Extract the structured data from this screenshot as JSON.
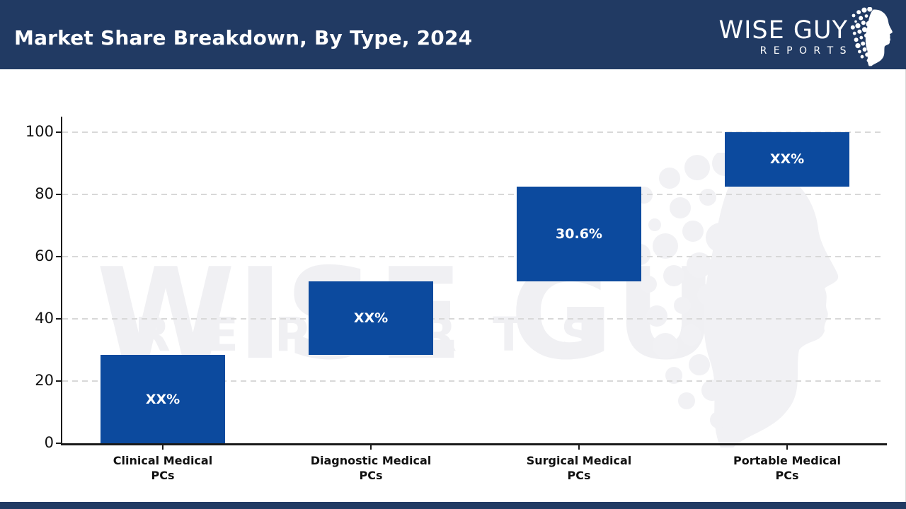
{
  "header": {
    "title": "Market Share Breakdown, By Type, 2024",
    "logo": {
      "line1": "WISE GUY",
      "line2": "R E P O R T S"
    }
  },
  "watermark": {
    "line1": "WISE GUY",
    "line2": "R E P O R T S"
  },
  "colors": {
    "header_bg": "#213a63",
    "footer_bg": "#213a63",
    "header_text": "#ffffff",
    "bar": "#0c4a9e",
    "bar_label": "#ffffff",
    "grid": "#d8d8d8",
    "axis": "#1a1a1a",
    "watermark": "#f0f0f3"
  },
  "chart_data": {
    "type": "bar",
    "subtype": "floating-segment-waterfall",
    "title": "Market Share Breakdown, By Type, 2024",
    "xlabel": "",
    "ylabel": "",
    "ylim": [
      0,
      100
    ],
    "yticks": [
      0,
      20,
      40,
      60,
      80,
      100
    ],
    "grid": "horizontal-dashed",
    "legend": "none",
    "categories": [
      "Clinical Medical PCs",
      "Diagnostic Medical PCs",
      "Surgical Medical PCs",
      "Portable Medical PCs"
    ],
    "segments": [
      {
        "category": "Clinical Medical\nPCs",
        "start": 0,
        "end": 28.3,
        "value": 28.3,
        "label": "XX%"
      },
      {
        "category": "Diagnostic Medical\nPCs",
        "start": 28.3,
        "end": 51.9,
        "value": 23.6,
        "label": "XX%"
      },
      {
        "category": "Surgical Medical\nPCs",
        "start": 51.9,
        "end": 82.5,
        "value": 30.6,
        "label": "30.6%"
      },
      {
        "category": "Portable Medical\nPCs",
        "start": 82.5,
        "end": 100,
        "value": 17.5,
        "label": "XX%"
      }
    ]
  }
}
